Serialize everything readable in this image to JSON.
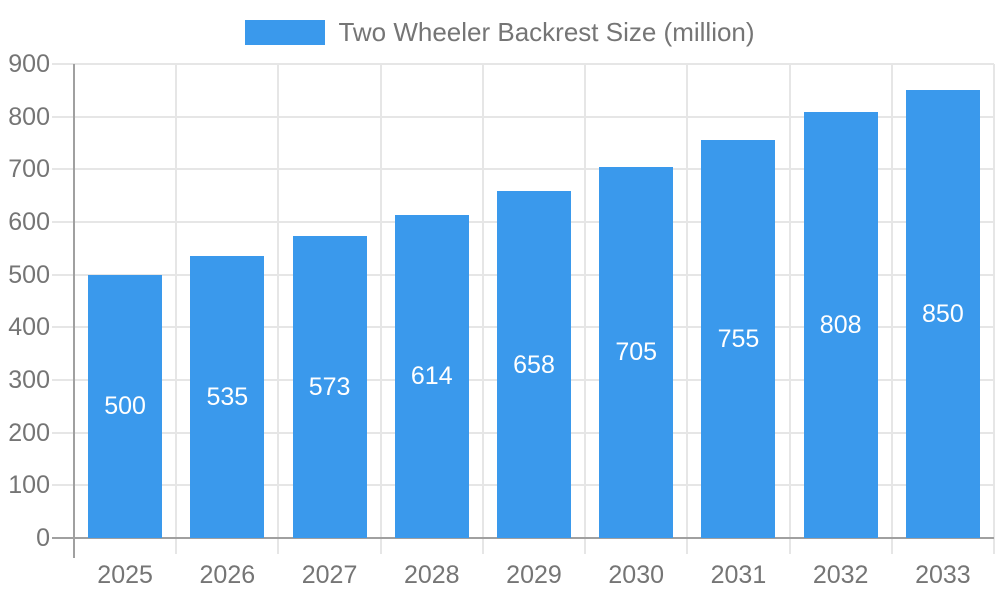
{
  "chart_data": {
    "type": "bar",
    "title": "Two Wheeler Backrest Size (million)",
    "categories": [
      "2025",
      "2026",
      "2027",
      "2028",
      "2029",
      "2030",
      "2031",
      "2032",
      "2033"
    ],
    "values": [
      500,
      535,
      573,
      614,
      658,
      705,
      755,
      808,
      850
    ],
    "xlabel": "",
    "ylabel": "",
    "ylim": [
      0,
      900
    ],
    "ytick_step": 100,
    "grid": true,
    "legend_position": "top-center",
    "bar_color": "#3a99ec",
    "bar_label_color": "#ffffff",
    "axis_text_color": "#757575",
    "gridline_color": "#e6e6e6",
    "axis_line_color": "#a0a0a0"
  }
}
